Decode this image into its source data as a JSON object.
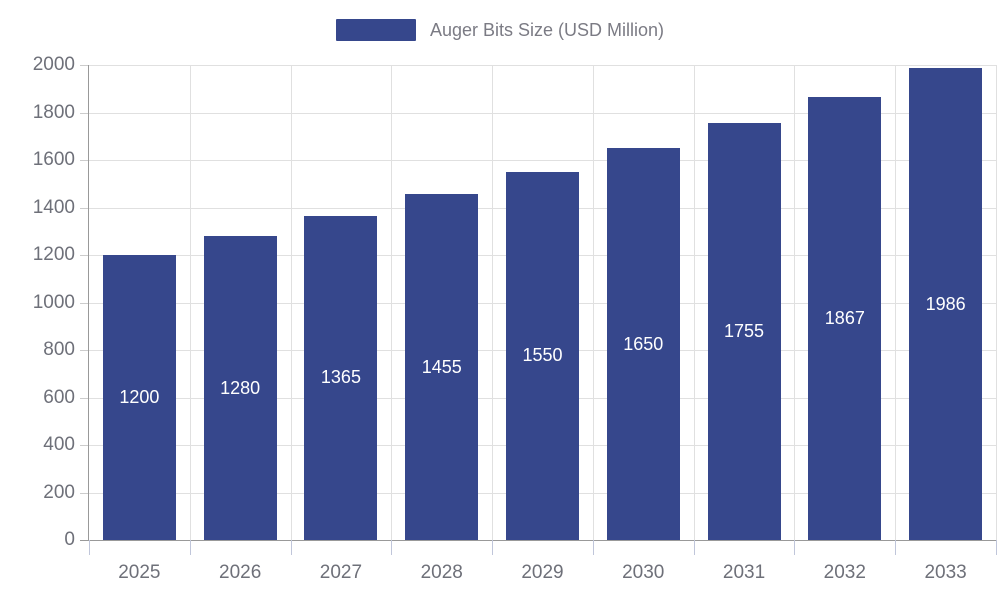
{
  "legend": {
    "label": "Auger Bits Size (USD Million)"
  },
  "chart_data": {
    "type": "bar",
    "title": "Auger Bits Size (USD Million)",
    "series_name": "Auger Bits Size (USD Million)",
    "categories": [
      "2025",
      "2026",
      "2027",
      "2028",
      "2029",
      "2030",
      "2031",
      "2032",
      "2033"
    ],
    "values": [
      1200,
      1280,
      1365,
      1455,
      1550,
      1650,
      1755,
      1867,
      1986
    ],
    "xlabel": "",
    "ylabel": "",
    "ylim": [
      0,
      2000
    ],
    "ytick_step": 200,
    "ytick_labels": [
      "0",
      "200",
      "400",
      "600",
      "800",
      "1000",
      "1200",
      "1400",
      "1600",
      "1800",
      "2000"
    ],
    "grid": "on",
    "legend_position": "top-center",
    "bar_color": "#36478C",
    "value_label_color": "#ffffff",
    "axis_label_color": "#6E7079",
    "axis_line_color": "#999999",
    "grid_color": "#e0e0e0",
    "xtick_mark_color": "#c0c6da"
  }
}
